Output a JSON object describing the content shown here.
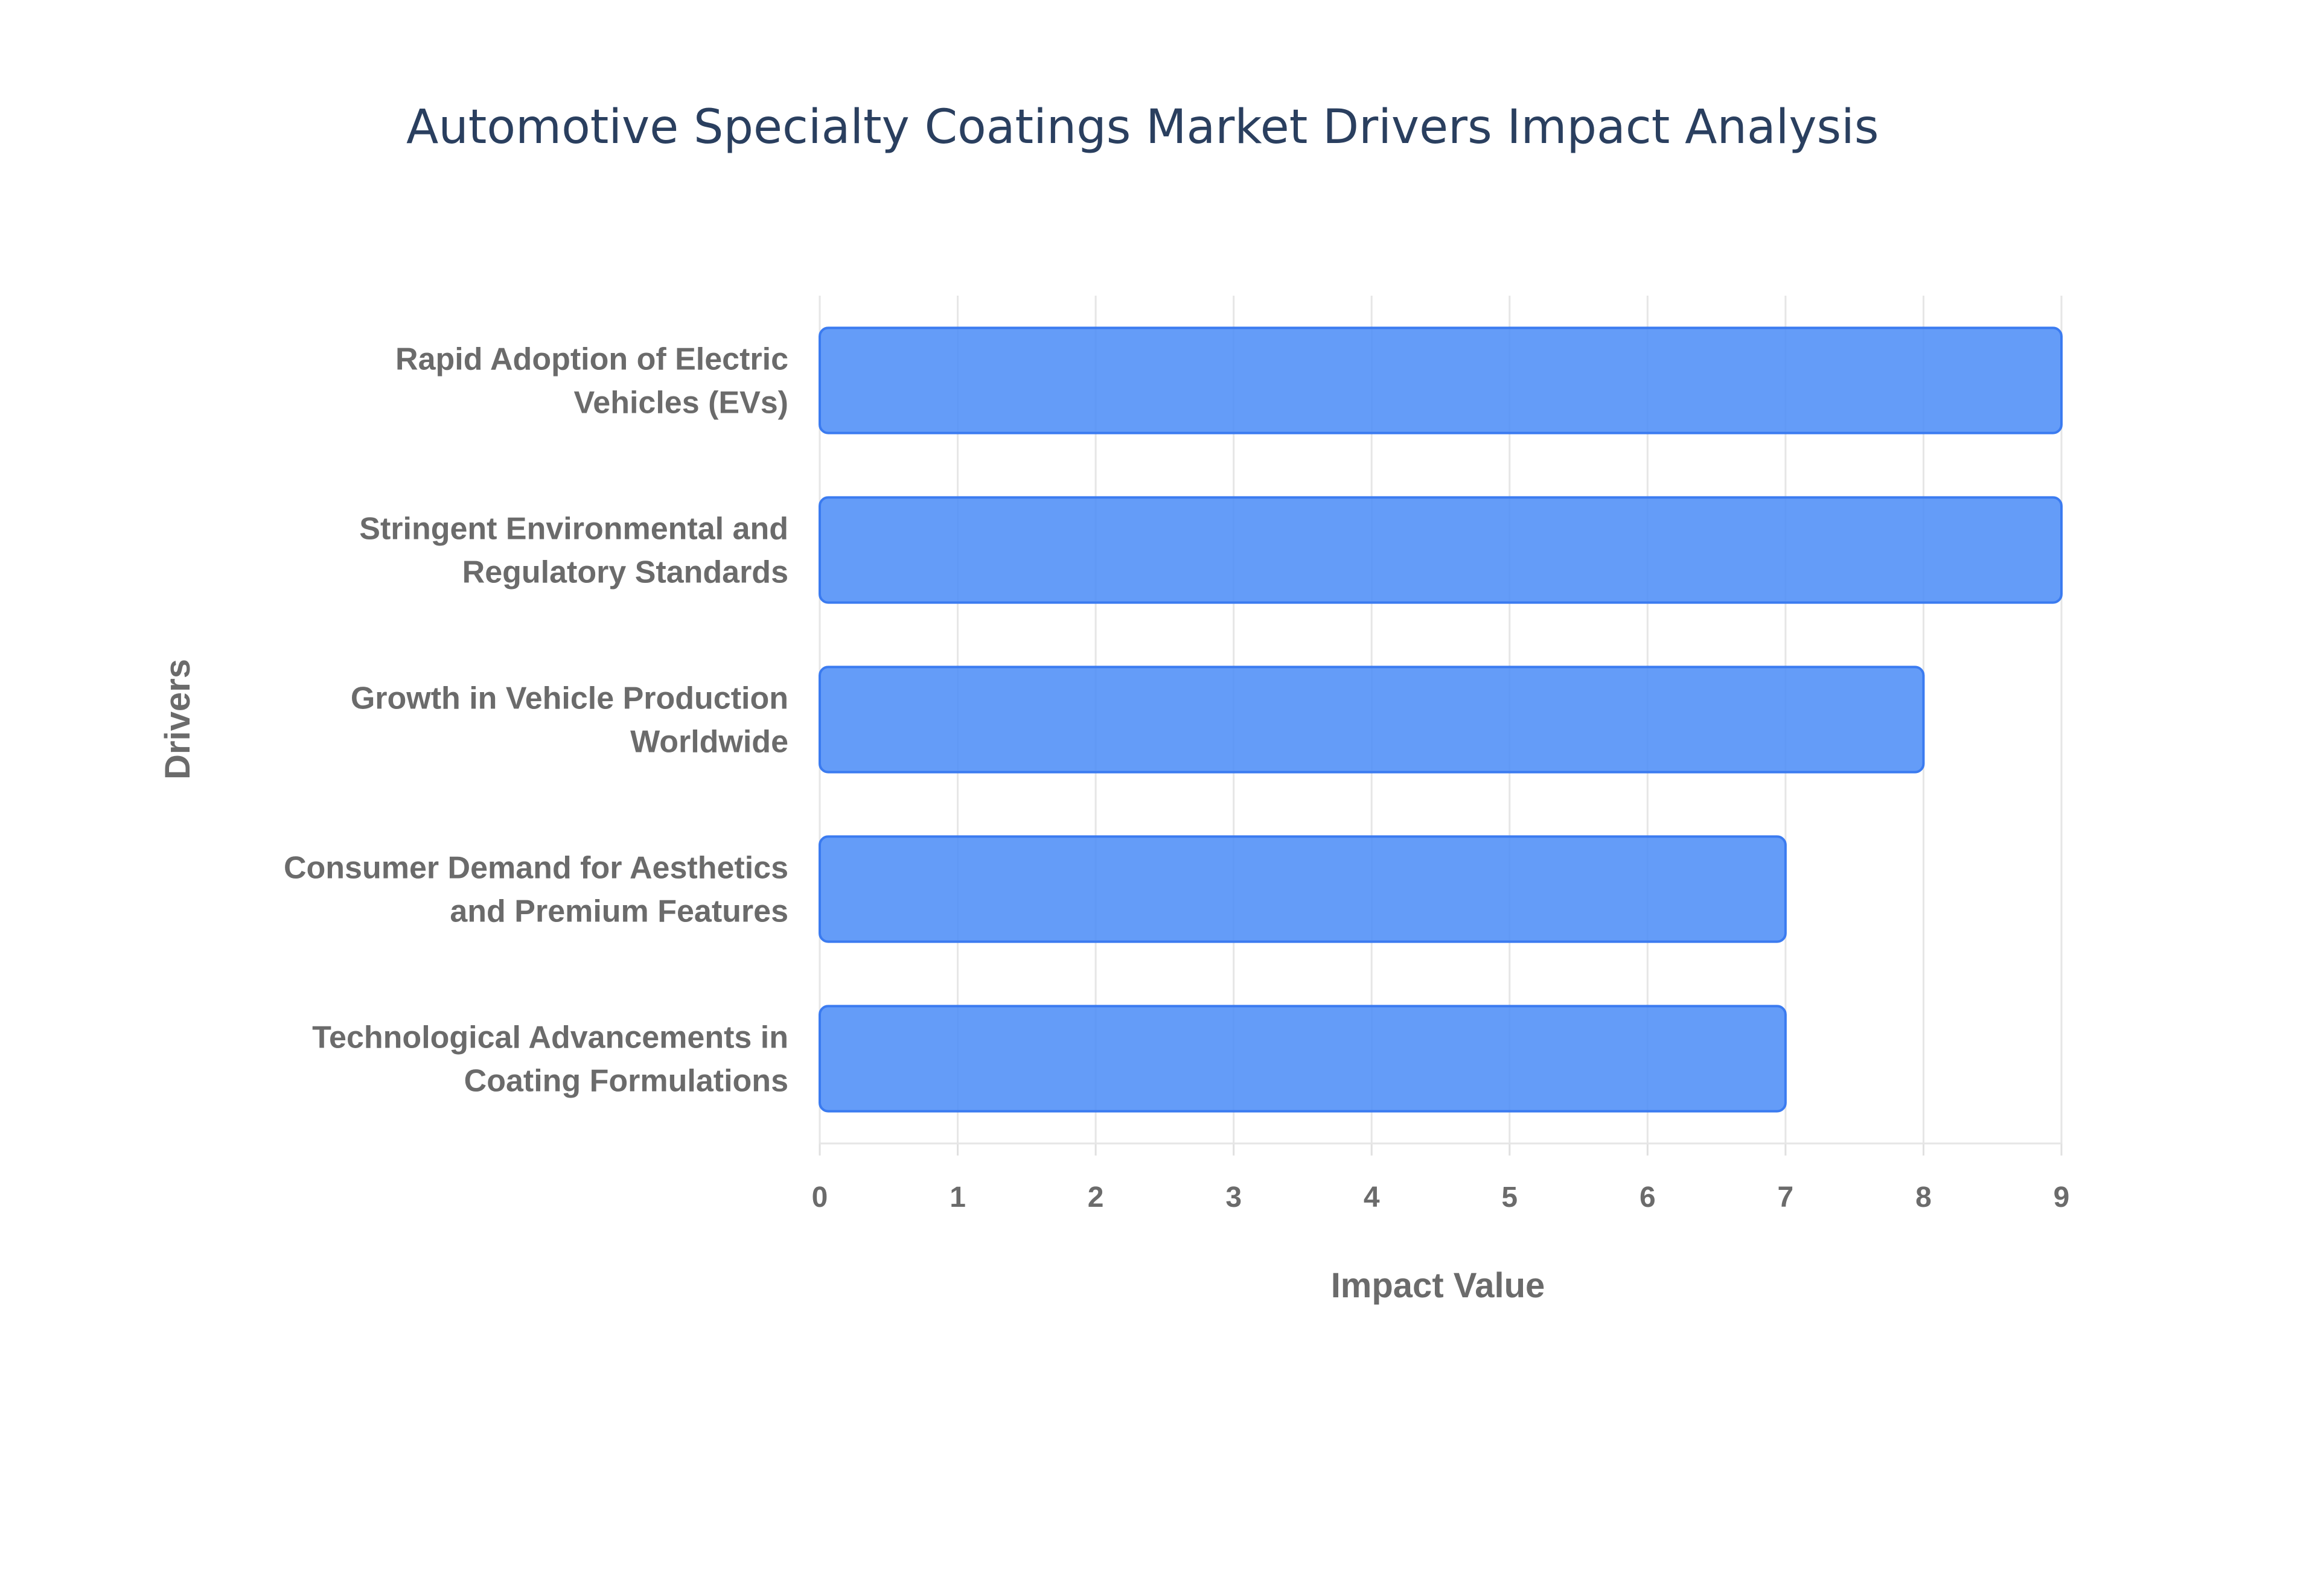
{
  "chart_data": {
    "type": "bar",
    "orientation": "horizontal",
    "title": "Automotive Specialty Coatings Market Drivers Impact Analysis",
    "xlabel": "Impact Value",
    "ylabel": "Drivers",
    "xlim": [
      0,
      9
    ],
    "x_ticks": [
      "0",
      "1",
      "2",
      "3",
      "4",
      "5",
      "6",
      "7",
      "8",
      "9"
    ],
    "grid": true,
    "bar_color": "#4f8ef7",
    "bar_edge_color": "#3b7bf0",
    "categories": [
      [
        "Rapid Adoption of Electric",
        "Vehicles (EVs)"
      ],
      [
        "Stringent Environmental and",
        "Regulatory Standards"
      ],
      [
        "Growth in Vehicle Production",
        "Worldwide"
      ],
      [
        "Consumer Demand for Aesthetics",
        "and Premium Features"
      ],
      [
        "Technological Advancements in",
        "Coating Formulations"
      ]
    ],
    "values": [
      9,
      9,
      8,
      7,
      7
    ]
  }
}
